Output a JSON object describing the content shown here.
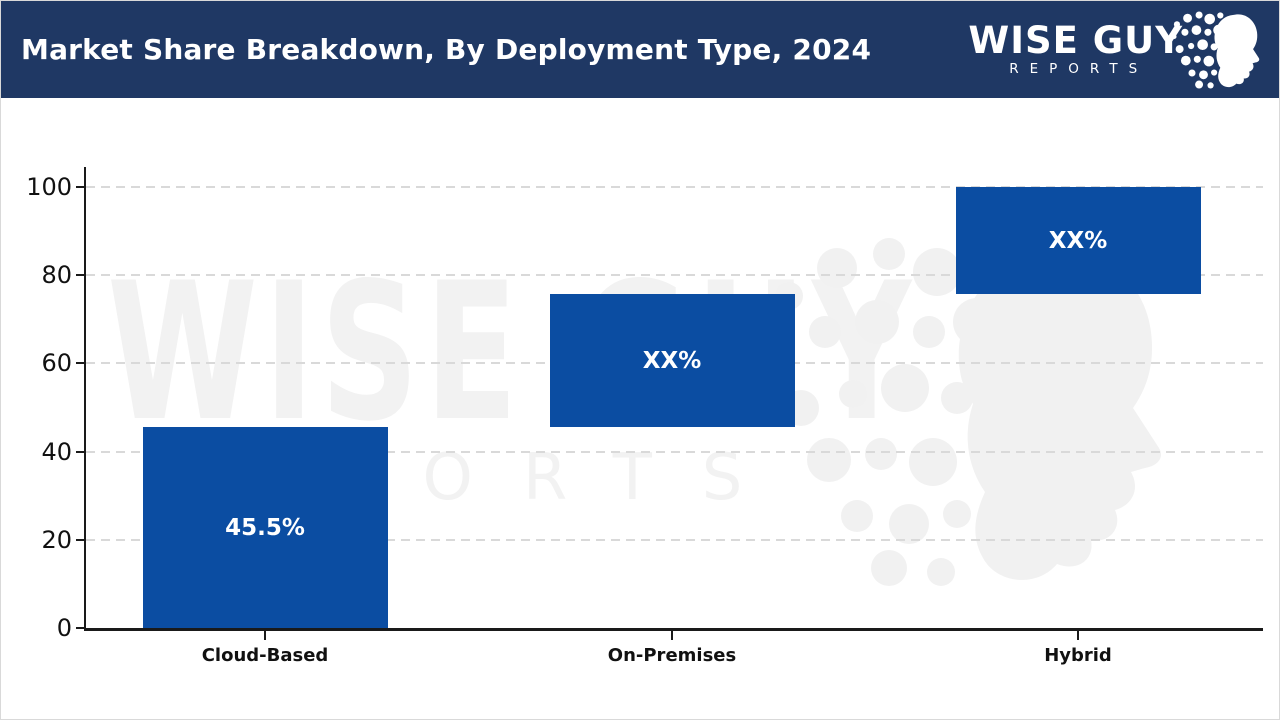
{
  "header": {
    "title": "Market Share Breakdown, By Deployment Type, 2024",
    "logo": {
      "line1": "WISE GUY",
      "line2": "REPORTS"
    }
  },
  "watermark": {
    "line1": "WISE GUY",
    "line2": "REPORTS"
  },
  "chart_data": {
    "type": "bar",
    "subtype": "waterfall",
    "title": "Market Share Breakdown, By Deployment Type, 2024",
    "categories": [
      "Cloud-Based",
      "On-Premises",
      "Hybrid"
    ],
    "segments": [
      {
        "category": "Cloud-Based",
        "start": 0,
        "end": 45.5,
        "label": "45.5%"
      },
      {
        "category": "On-Premises",
        "start": 45.5,
        "end": 75.7,
        "label": "XX%"
      },
      {
        "category": "Hybrid",
        "start": 75.7,
        "end": 100,
        "label": "XX%"
      }
    ],
    "xlabel": "",
    "ylabel": "",
    "ylim": [
      0,
      100
    ],
    "yticks": [
      0,
      20,
      40,
      60,
      80,
      100
    ],
    "grid": "horizontal-dashed",
    "legend": "none",
    "bar_color": "#0b4da2",
    "value_label_color": "#ffffff"
  },
  "colors": {
    "header_bg": "#1f3864",
    "bar": "#0b4da2",
    "gridline": "#d9d9d9",
    "axis": "#1a1a1a",
    "watermark": "#f2f2f2",
    "border": "#d9d9d9"
  }
}
